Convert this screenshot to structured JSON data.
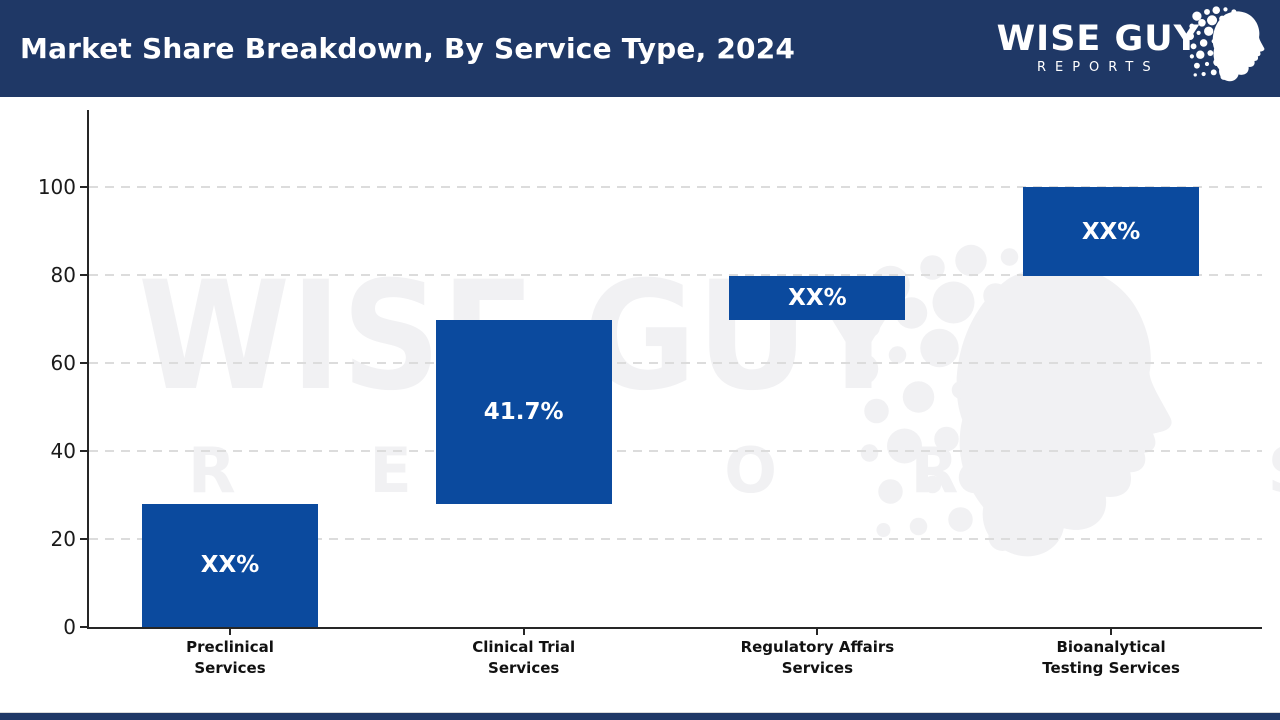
{
  "header": {
    "title": "Market Share Breakdown, By Service Type, 2024",
    "logo": {
      "line1": "WISE GUY",
      "line2": "REPORTS"
    }
  },
  "watermark": {
    "line1": "WISE GUY",
    "line2": "R E P O R T S"
  },
  "colors": {
    "header_bg": "#1f3866",
    "bar": "#0b4a9e",
    "grid": "#dcdcdc",
    "axis": "#262626",
    "watermark": "#f1f1f3",
    "value_label": "#ffffff"
  },
  "chart_data": {
    "type": "bar",
    "subtype": "waterfall",
    "title": "Market Share Breakdown, By Service Type, 2024",
    "categories": [
      "Preclinical Services",
      "Clinical Trial Services",
      "Regulatory Affairs Services",
      "Bioanalytical Testing Services"
    ],
    "category_lines": [
      [
        "Preclinical",
        "Services"
      ],
      [
        "Clinical Trial",
        "Services"
      ],
      [
        "Regulatory Affairs",
        "Services"
      ],
      [
        "Bioanalytical",
        "Testing Services"
      ]
    ],
    "segments": [
      {
        "category": "Preclinical Services",
        "start": 0,
        "end": 28,
        "label": "XX%"
      },
      {
        "category": "Clinical Trial Services",
        "start": 28,
        "end": 69.7,
        "label": "41.7%"
      },
      {
        "category": "Regulatory Affairs Services",
        "start": 69.7,
        "end": 79.7,
        "label": "XX%"
      },
      {
        "category": "Bioanalytical Testing Services",
        "start": 79.7,
        "end": 100,
        "label": "XX%"
      }
    ],
    "ylim": [
      0,
      100
    ],
    "yticks": [
      0,
      20,
      40,
      60,
      80,
      100
    ],
    "grid": true,
    "legend": null,
    "xlabel": "",
    "ylabel": ""
  }
}
